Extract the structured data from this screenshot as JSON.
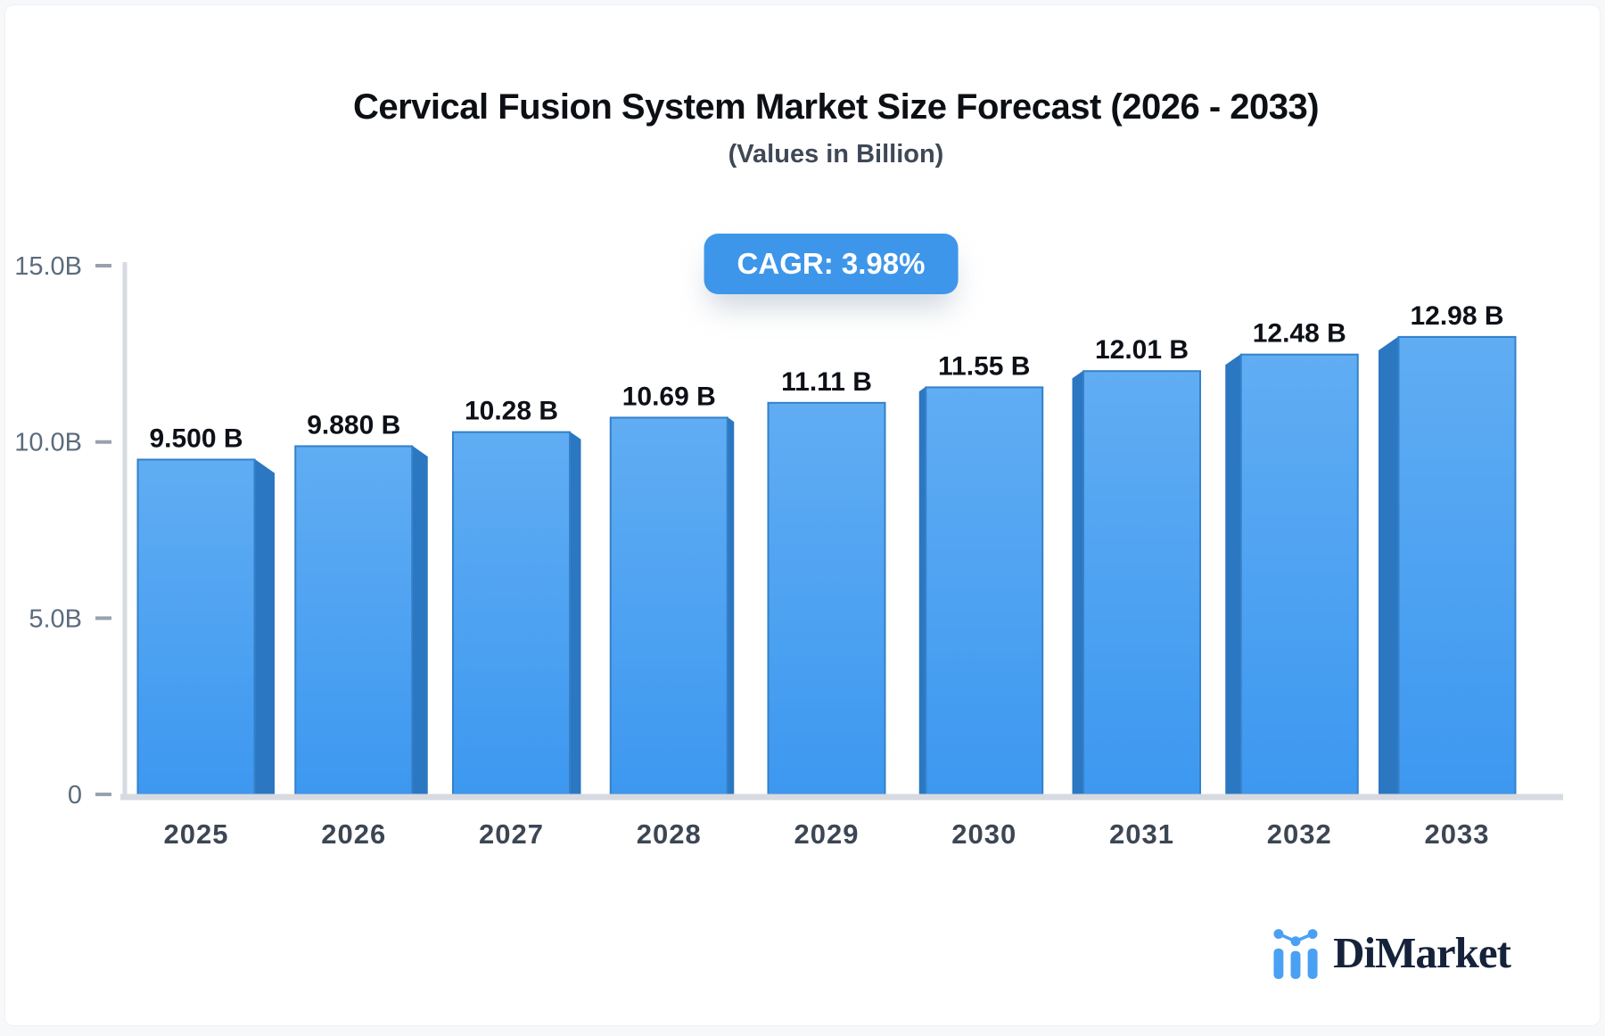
{
  "header": {
    "title": "Cervical Fusion System Market Size Forecast (2026 - 2033)",
    "subtitle": "(Values in Billion)"
  },
  "badge": {
    "label": "CAGR: 3.98%",
    "background": "#3e96ea",
    "text_color": "#ffffff"
  },
  "chart_data": {
    "type": "bar",
    "title": "Cervical Fusion System Market Size Forecast (2026 - 2033)",
    "subtitle": "(Values in Billion)",
    "categories": [
      "2025",
      "2026",
      "2027",
      "2028",
      "2029",
      "2030",
      "2031",
      "2032",
      "2033"
    ],
    "values": [
      9.5,
      9.88,
      10.28,
      10.69,
      11.11,
      11.55,
      12.01,
      12.48,
      12.98
    ],
    "value_labels": [
      "9.500 B",
      "9.880 B",
      "10.28 B",
      "10.69 B",
      "11.11 B",
      "11.55 B",
      "12.01 B",
      "12.48 B",
      "12.98 B"
    ],
    "xlabel": "",
    "ylabel": "",
    "ylim": [
      0,
      15
    ],
    "yticks": [
      {
        "value": 0,
        "label": "0"
      },
      {
        "value": 5,
        "label": "5.0B"
      },
      {
        "value": 10,
        "label": "10.0B"
      },
      {
        "value": 15,
        "label": "15.0B"
      }
    ],
    "grid": false,
    "legend": false,
    "style": {
      "bar_gradient_top": "#60adf3",
      "bar_gradient_bottom": "#3d98f0",
      "bar_border": "#3580c9",
      "bar_side": "#2c77c1",
      "axis_line": "#d7dbe1",
      "tick_dash": "#98a1ad",
      "ytick_label_color": "#5c6b7d",
      "xtick_label_color": "#3c4654",
      "value_label_color": "#0d1117"
    }
  },
  "logo": {
    "name": "DiMarket",
    "icon": "mini-bar-chart-icon",
    "icon_color": "#4aa0f2",
    "text_color": "#15223a"
  }
}
